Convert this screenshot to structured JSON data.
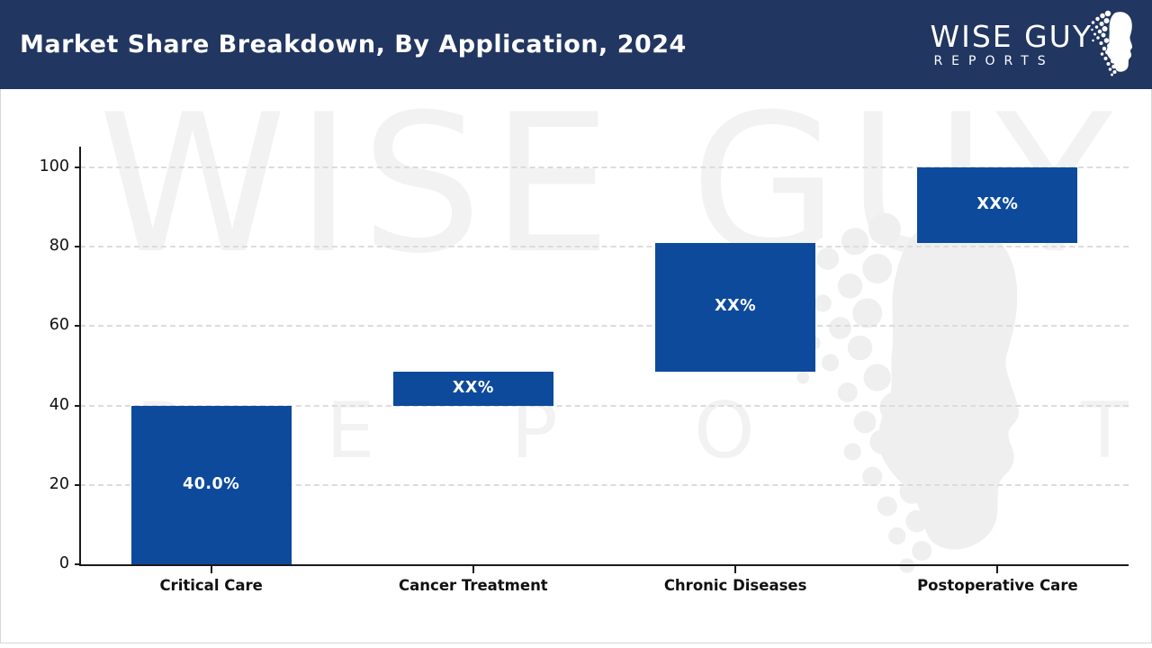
{
  "header": {
    "title": "Market Share Breakdown, By Application, 2024",
    "bg_color": "#213660",
    "logo": {
      "line1": "WISE GUY",
      "line2": "REPORTS"
    }
  },
  "watermark": {
    "line1": "WISE GUY",
    "line2": "R E P O R T S"
  },
  "chart_data": {
    "type": "bar",
    "subtype": "waterfall",
    "title": "Market Share Breakdown, By Application, 2024",
    "categories": [
      "Critical Care",
      "Cancer Treatment",
      "Chronic Diseases",
      "Postoperative Care"
    ],
    "segments": [
      {
        "category": "Critical Care",
        "start": 0,
        "end": 40,
        "label": "40.0%"
      },
      {
        "category": "Cancer Treatment",
        "start": 40,
        "end": 48.5,
        "label": "XX%"
      },
      {
        "category": "Chronic Diseases",
        "start": 48.5,
        "end": 81,
        "label": "XX%"
      },
      {
        "category": "Postoperative Care",
        "start": 81,
        "end": 100,
        "label": "XX%"
      }
    ],
    "ylabel": "",
    "xlabel": "",
    "yticks": [
      0,
      20,
      40,
      60,
      80,
      100
    ],
    "ytick_labels": [
      "0",
      "20",
      "40",
      "60",
      "80",
      "100"
    ],
    "ylim": [
      0,
      105
    ],
    "grid": "horizontal dashed",
    "legend": "none",
    "bar_color": "#0d4a9c",
    "value_label_color": "#ffffff"
  }
}
